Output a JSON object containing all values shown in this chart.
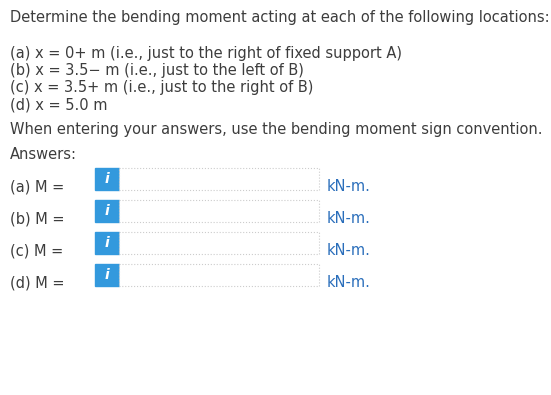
{
  "title": "Determine the bending moment acting at each of the following locations:",
  "items": [
    "(a) x = 0+ m (i.e., just to the right of fixed support A)",
    "(b) x = 3.5− m (i.e., just to the left of B)",
    "(c) x = 3.5+ m (i.e., just to the right of B)",
    "(d) x = 5.0 m"
  ],
  "note": "When entering your answers, use the bending moment sign convention.",
  "answers_label": "Answers:",
  "answer_labels": [
    "(a) M = ",
    "(b) M = ",
    "(c) M = ",
    "(d) M = "
  ],
  "unit": "kN-m.",
  "bg_color": "#ffffff",
  "text_color": "#3d3d3d",
  "unit_color": "#2a6ebb",
  "box_blue": "#3399dd",
  "box_border": "#cccccc",
  "box_fill": "#ffffff",
  "title_fontsize": 10.5,
  "body_fontsize": 10.5,
  "small_fontsize": 10.5
}
